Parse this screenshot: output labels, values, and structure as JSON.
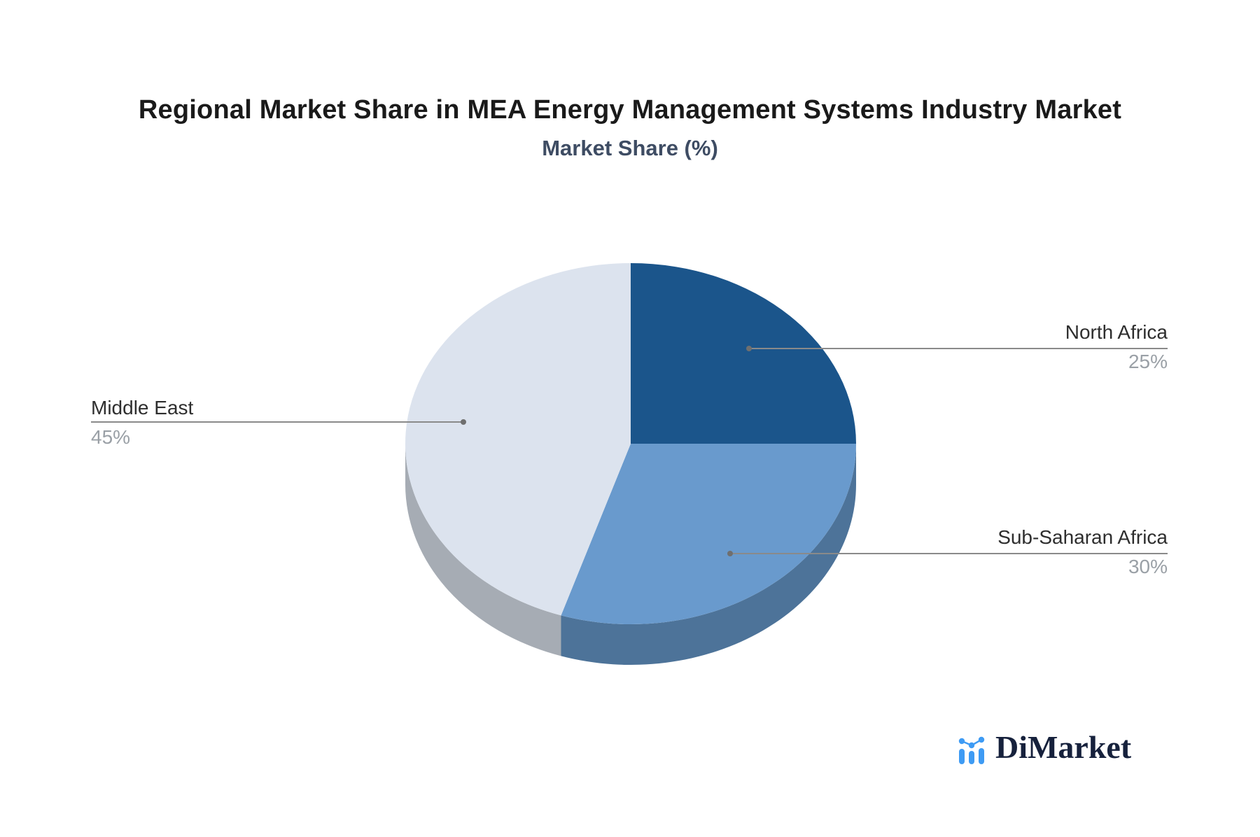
{
  "chart_data": {
    "type": "pie",
    "title": "Regional Market Share in MEA Energy Management Systems Industry Market",
    "subtitle": "Market Share (%)",
    "unit": "%",
    "style": "3d",
    "start_angle_deg": 0,
    "direction": "clockwise",
    "legend_position": "none",
    "slices": [
      {
        "label": "North Africa",
        "value": 25,
        "percent_label": "25%",
        "color": "#1b558b",
        "side_color": "#4d7399"
      },
      {
        "label": "Sub-Saharan Africa",
        "value": 30,
        "percent_label": "30%",
        "color": "#699acd",
        "side_color": "#4d7399"
      },
      {
        "label": "Middle East",
        "value": 45,
        "percent_label": "45%",
        "color": "#dce3ee",
        "side_color": "#a6acb4"
      }
    ],
    "colors": {
      "title_text": "#1a1a1a",
      "subtitle_text": "#3e4c63",
      "label_text": "#2e2e2e",
      "percent_text": "#9aa0a6",
      "leader_line": "#8a8a8a",
      "leader_dot": "#6f6f6f",
      "background": "#ffffff"
    }
  },
  "logo": {
    "name": "DiMarket",
    "icon": "bar-chart-logo-icon",
    "text_color": "#16213c",
    "accent_color": "#3e9bf4"
  }
}
